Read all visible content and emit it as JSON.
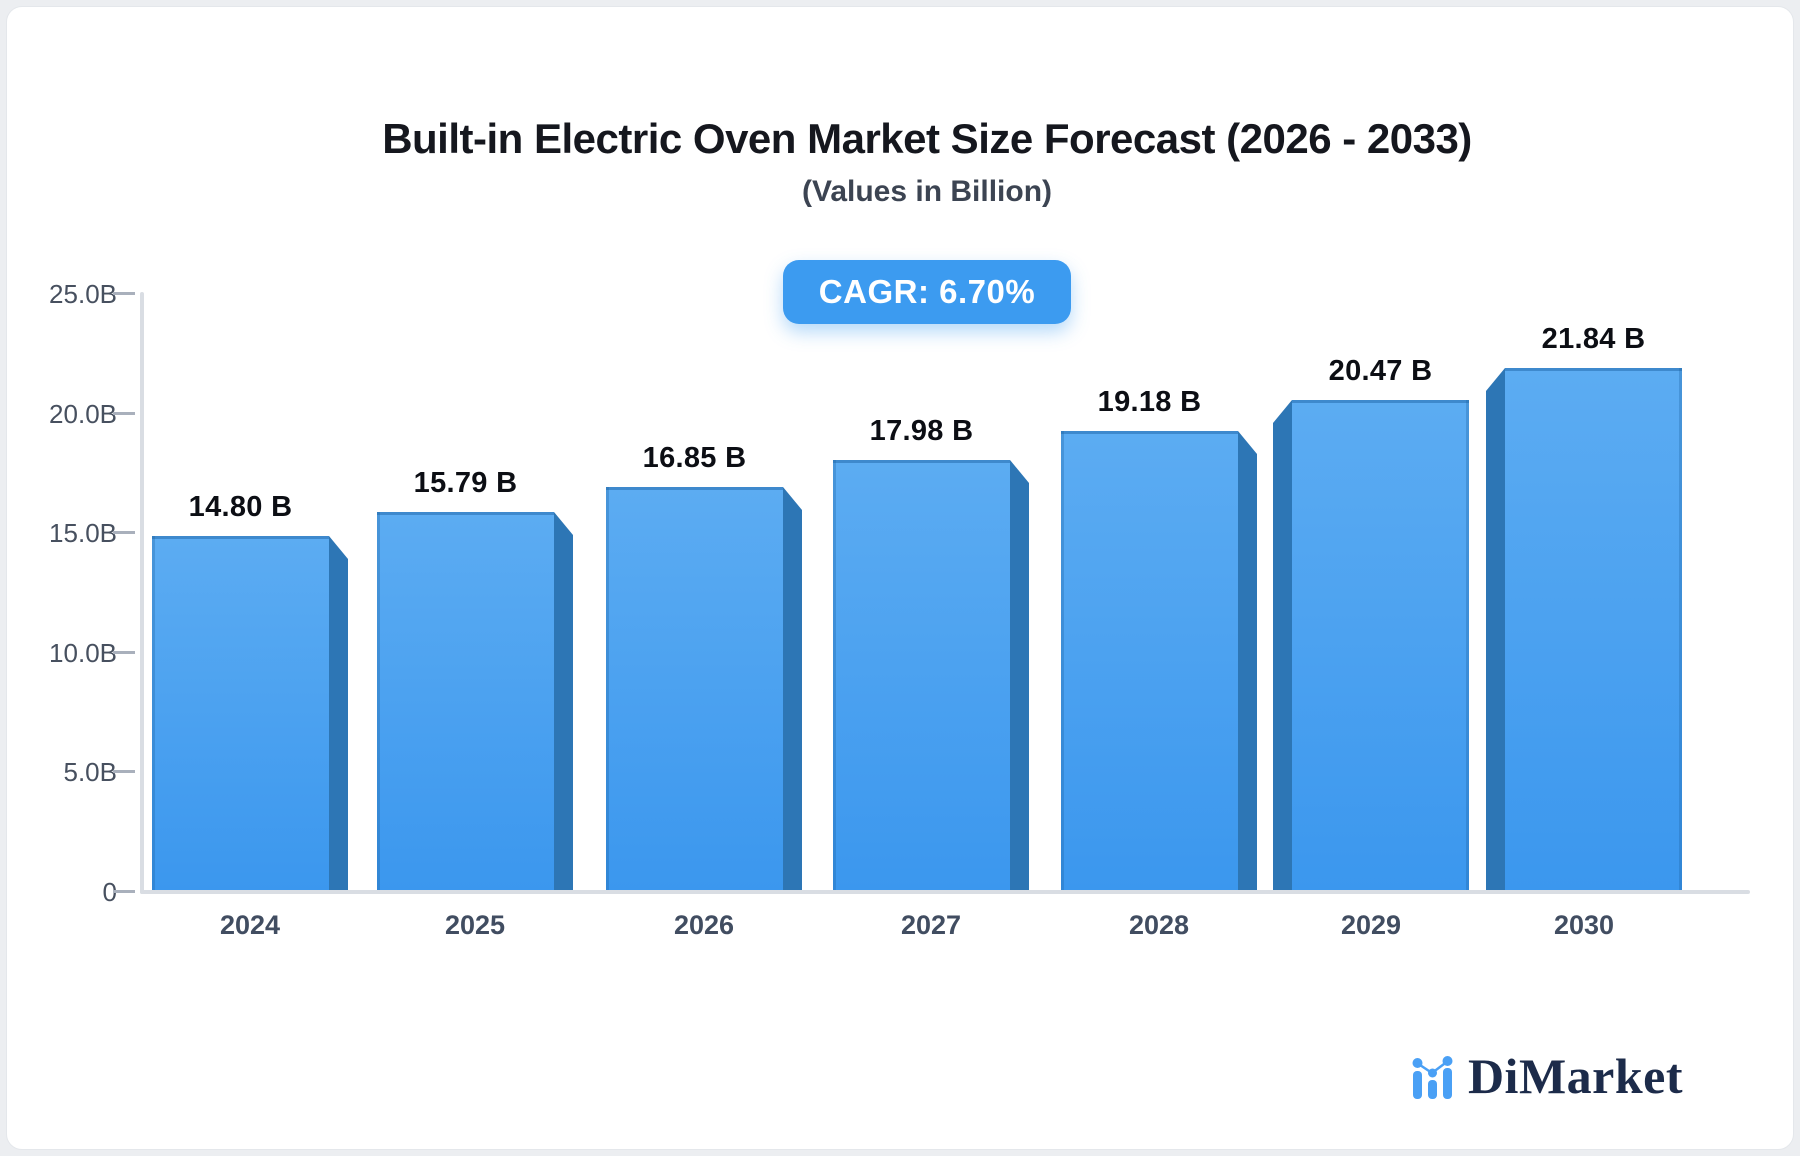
{
  "header": {
    "title": "Built-in Electric Oven Market Size Forecast (2026 - 2033)",
    "subtitle": "(Values in Billion)",
    "cagr_label": "CAGR: 6.70%"
  },
  "brand": {
    "name": "DiMarket"
  },
  "chart_data": {
    "type": "bar",
    "title": "Built-in Electric Oven Market Size Forecast (2026 - 2033)",
    "subtitle": "(Values in Billion)",
    "cagr": "6.70%",
    "unit": "Billion",
    "categories": [
      "2024",
      "2025",
      "2026",
      "2027",
      "2028",
      "2029",
      "2030"
    ],
    "values": [
      14.8,
      15.79,
      16.85,
      17.98,
      19.18,
      20.47,
      21.84
    ],
    "bar_labels": [
      "14.80 B",
      "15.79 B",
      "16.85 B",
      "17.98 B",
      "19.18 B",
      "20.47 B",
      "21.84 B"
    ],
    "ylim": [
      0,
      25
    ],
    "yticks": [
      {
        "value": 25,
        "label": "25.0B"
      },
      {
        "value": 20,
        "label": "20.0B"
      },
      {
        "value": 15,
        "label": "15.0B"
      },
      {
        "value": 10,
        "label": "10.0B"
      },
      {
        "value": 5,
        "label": "5.0B"
      },
      {
        "value": 0,
        "label": "0"
      }
    ],
    "grid": "off",
    "legend": "none",
    "colors": {
      "bar_top": "#5cacf2",
      "bar_bottom": "#3b97ee",
      "bar_side": "#2d76b5",
      "badge_bg": "#3c9bf0",
      "badge_text": "#ffffff",
      "axis_line": "#d9dde3",
      "tick_text": "#47505f",
      "value_text": "#0c0e14",
      "logo_text": "#1c2b4a",
      "logo_icon": "#4aa0f5"
    }
  }
}
